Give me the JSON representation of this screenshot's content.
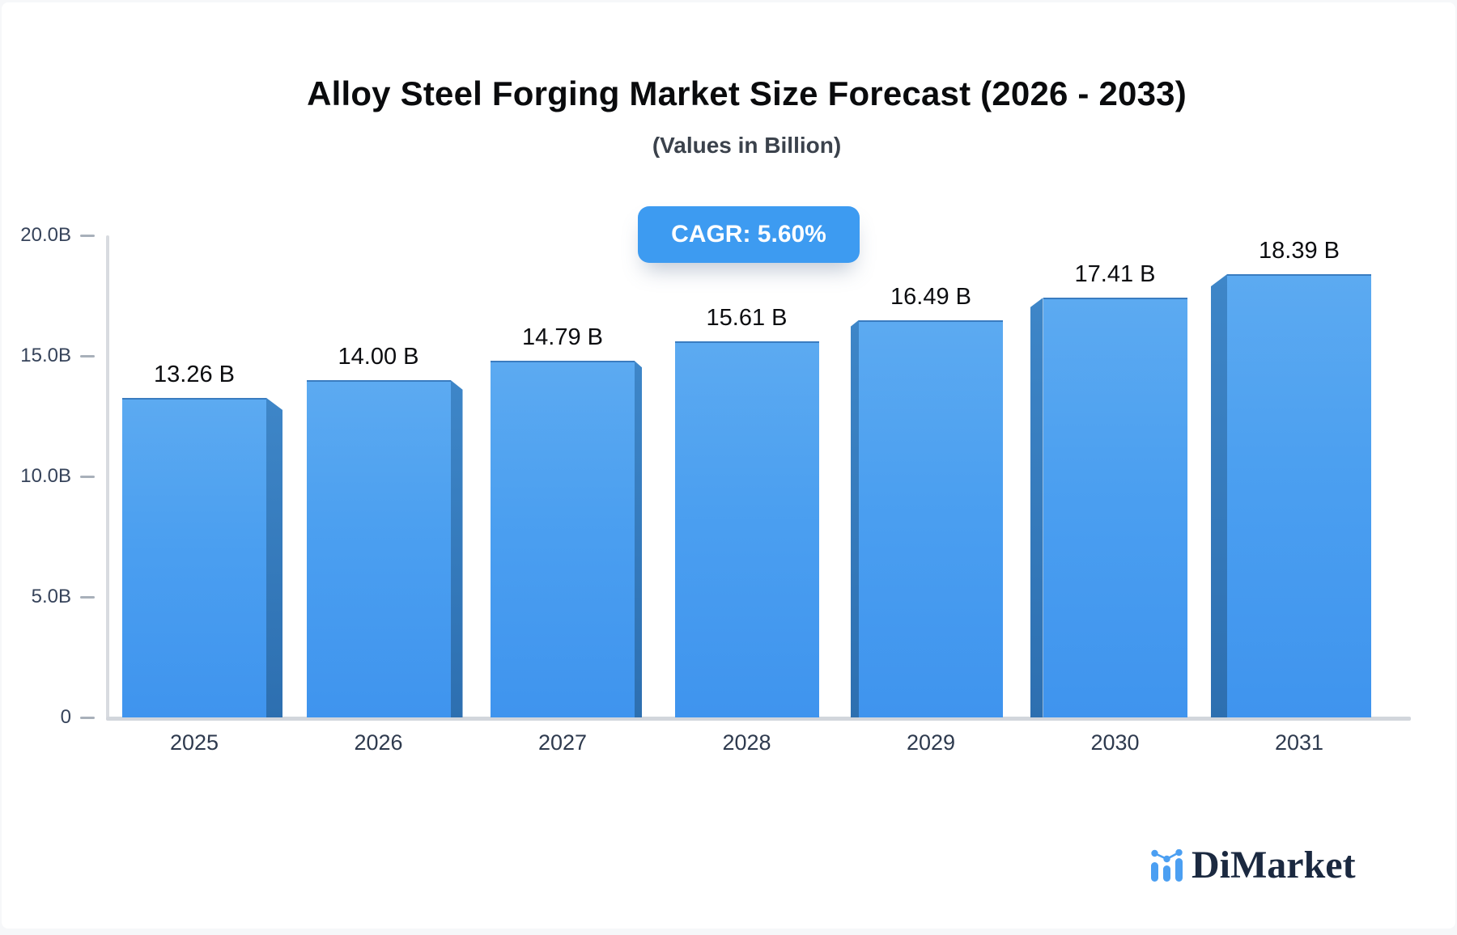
{
  "header": {
    "title": "Alloy Steel Forging Market Size Forecast (2026 - 2033)",
    "subtitle": "(Values in Billion)"
  },
  "badge": {
    "label": "CAGR: 5.60%",
    "color": "#3d9bf1"
  },
  "chart_data": {
    "type": "bar",
    "title": "Alloy Steel Forging Market Size Forecast (2026 - 2033)",
    "subtitle": "(Values in Billion)",
    "cagr": "CAGR: 5.60%",
    "categories": [
      "2025",
      "2026",
      "2027",
      "2028",
      "2029",
      "2030",
      "2031"
    ],
    "values": [
      13.26,
      14.0,
      14.79,
      15.61,
      16.49,
      17.41,
      18.39
    ],
    "value_labels": [
      "13.26 B",
      "14.00 B",
      "14.79 B",
      "15.61 B",
      "16.49 B",
      "17.41 B",
      "18.39 B"
    ],
    "xlabel": "",
    "ylabel": "",
    "ylim": [
      0,
      20
    ],
    "y_ticks": [
      {
        "value": 20,
        "label": "20.0B"
      },
      {
        "value": 15,
        "label": "15.0B"
      },
      {
        "value": 10,
        "label": "10.0B"
      },
      {
        "value": 5,
        "label": "5.0B"
      },
      {
        "value": 0,
        "label": "0"
      }
    ],
    "grid": false,
    "legend": false,
    "colors": {
      "bar_face_top": "#5caaf1",
      "bar_face_bottom": "#3f94ee",
      "bar_side": "#2e72b4",
      "accent": "#3d9bf1",
      "axis": "#d8dbe0",
      "tick": "#a8b0ba"
    }
  },
  "logo": {
    "text": "DiMarket",
    "icon": "bar-chart-logo-icon",
    "text_color": "#1b2940",
    "icon_color": "#4b9ff2"
  }
}
